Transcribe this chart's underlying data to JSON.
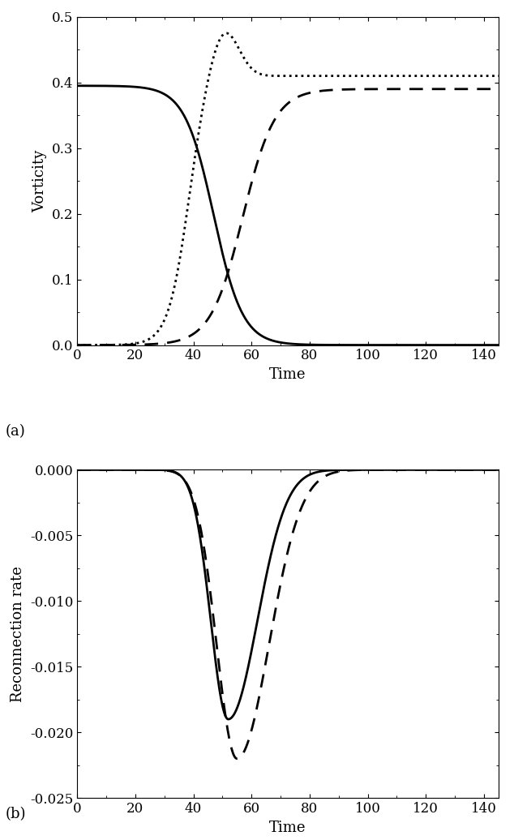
{
  "fig_width": 6.34,
  "fig_height": 10.36,
  "dpi": 100,
  "background_color": "#ffffff",
  "panel_a": {
    "xlabel": "Time",
    "ylabel": "Vorticity",
    "xlim": [
      0,
      145
    ],
    "ylim": [
      0.0,
      0.5
    ],
    "xticks": [
      0,
      20,
      40,
      60,
      80,
      100,
      120,
      140
    ],
    "yticks": [
      0.0,
      0.1,
      0.2,
      0.3,
      0.4,
      0.5
    ],
    "label": "(a)"
  },
  "panel_b": {
    "xlabel": "Time",
    "ylabel": "Reconnection rate",
    "xlim": [
      0,
      145
    ],
    "ylim": [
      -0.025,
      0.0
    ],
    "xticks": [
      0,
      20,
      40,
      60,
      80,
      100,
      120,
      140
    ],
    "yticks": [
      0.0,
      -0.005,
      -0.01,
      -0.015,
      -0.02,
      -0.025
    ],
    "label": "(b)"
  },
  "line_color": "#000000",
  "line_width": 2.0,
  "font_size": 13
}
